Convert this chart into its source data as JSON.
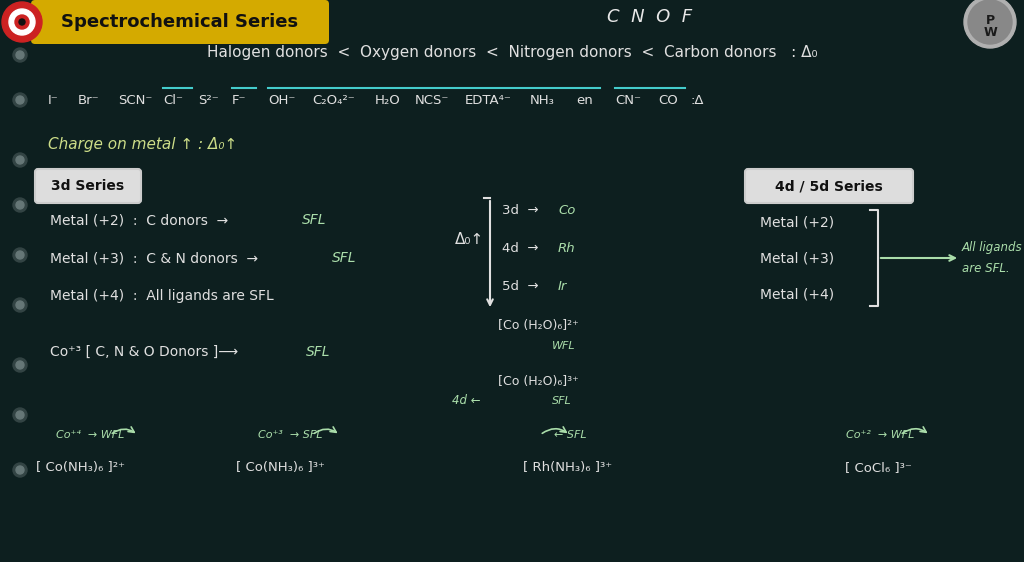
{
  "bg_color": "#0d1f1f",
  "title": "Spectrochemical Series",
  "title_bg": "#d4aa00",
  "title_color": "#111111",
  "header_cnof": "C  N  O  F",
  "header_cnof_color": "#e8e8e8",
  "series_line": "Halogen donors  <  Oxygen donors  <  Nitrogen donors  <  Carbon donors   : Δ₀",
  "series_line_color": "#e8e8e8",
  "charge_text": "Charge on metal ↑ : Δ₀↑",
  "charge_color": "#ccdd88",
  "series3d_label": "3d Series",
  "series4d5d_label": "4d / 5d Series",
  "accent_color": "#aaddaa",
  "white": "#e0e0e0",
  "cyan_line": "#44cccc",
  "sfl_color": "#aaddaa"
}
